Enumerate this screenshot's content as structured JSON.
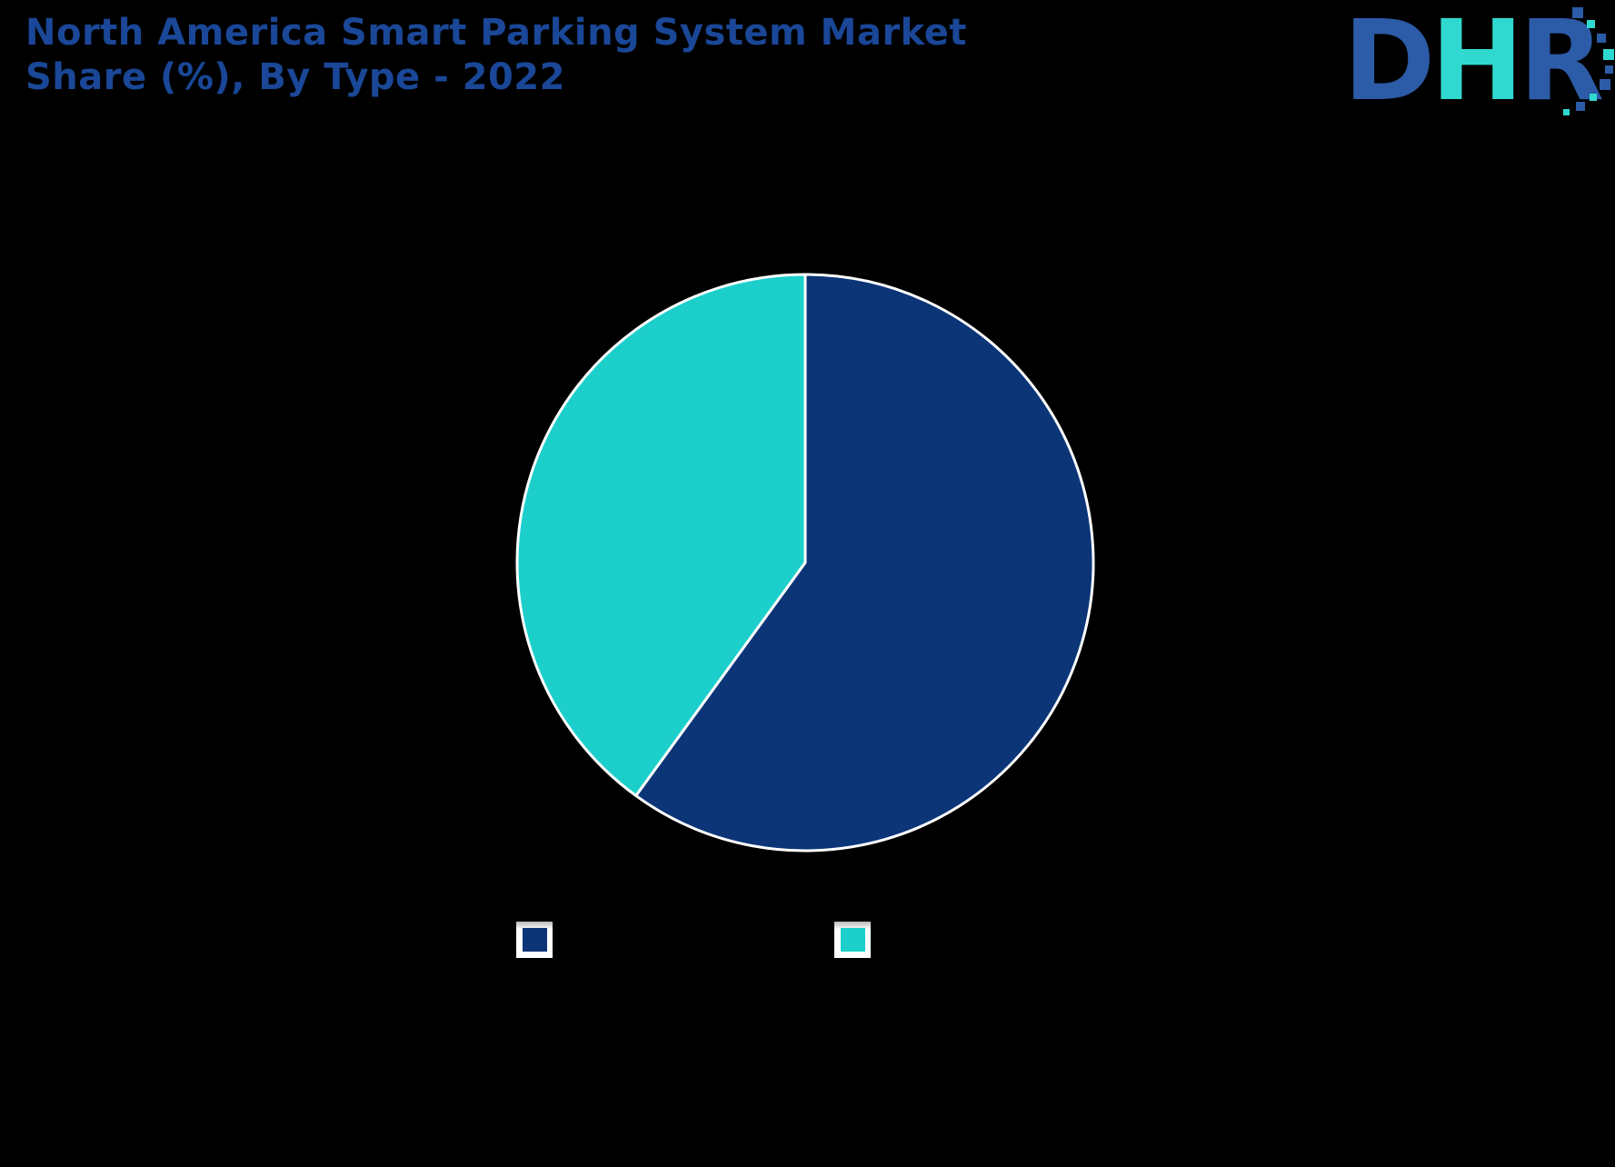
{
  "theme": {
    "background": "#000000",
    "title_color": "#1A4797",
    "pie_navy": "#0B3577",
    "pie_teal": "#1CCFCB",
    "logo_blue": "#2C5BA7",
    "logo_teal": "#30D9CF",
    "slice_stroke": "#FFFFFF"
  },
  "header": {
    "title_line1": "North America Smart Parking System Market",
    "title_line2": "Share (%), By Type - 2022"
  },
  "logo": {
    "letters": [
      {
        "char": "D",
        "color": "#2C5BA7"
      },
      {
        "char": "H",
        "color": "#30D9CF"
      },
      {
        "char": "R",
        "color": "#2C5BA7"
      }
    ]
  },
  "chart_data": {
    "type": "pie",
    "title": "North America Smart Parking System Market Share (%), By Type - 2022",
    "start_angle_deg": 0,
    "direction": "clockwise",
    "slices": [
      {
        "label": "",
        "value": 60,
        "color": "#0B3577"
      },
      {
        "label": "",
        "value": 40,
        "color": "#1CCFCB"
      }
    ],
    "legend_position": "bottom",
    "legend": [
      {
        "label": "",
        "color": "#0B3577"
      },
      {
        "label": "",
        "color": "#1CCFCB"
      }
    ]
  }
}
